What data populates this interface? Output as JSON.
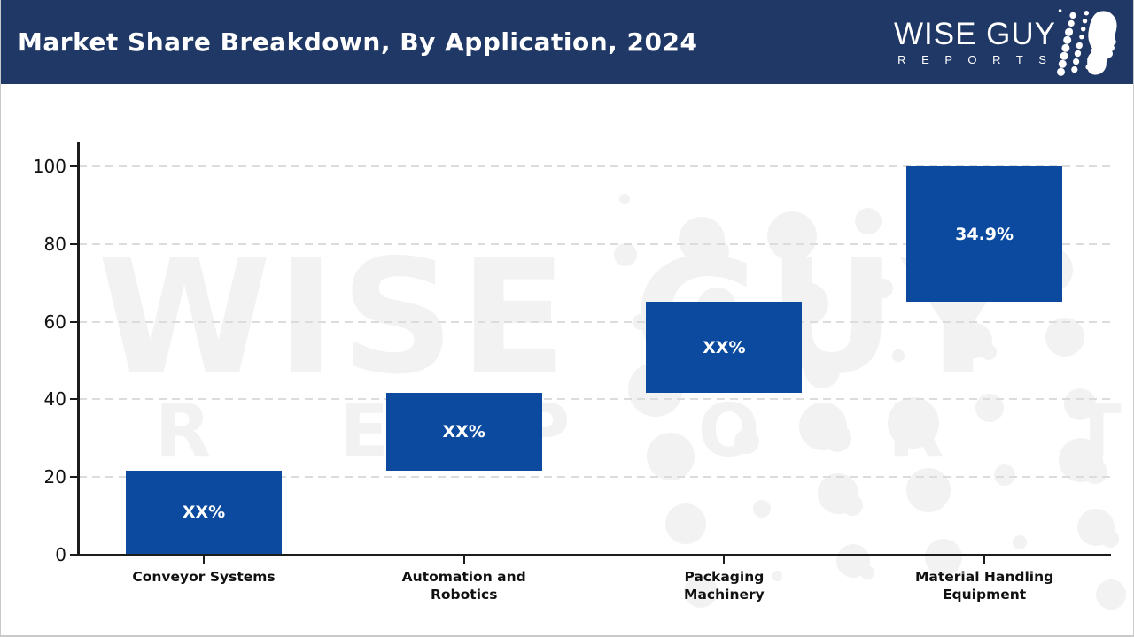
{
  "header": {
    "title": "Market Share Breakdown, By Application, 2024",
    "brand_line1": "WISE GUY",
    "brand_line2": "R E P O R T S",
    "bg_color": "#1f3865"
  },
  "watermark": {
    "line1": "WISE GUY",
    "line2": "R E P O R T S"
  },
  "chart_data": {
    "type": "bar",
    "subtype": "waterfall",
    "title": "Market Share Breakdown, By Application, 2024",
    "categories": [
      [
        "Conveyor Systems"
      ],
      [
        "Automation and",
        "Robotics"
      ],
      [
        "Packaging",
        "Machinery"
      ],
      [
        "Material Handling",
        "Equipment"
      ]
    ],
    "series": [
      {
        "name": "Market Share",
        "starts": [
          0,
          21.7,
          41.6,
          65.1
        ],
        "ends": [
          21.7,
          41.6,
          65.1,
          100
        ],
        "heights": [
          21.7,
          19.9,
          23.5,
          34.9
        ],
        "labels": [
          "XX%",
          "XX%",
          "XX%",
          "34.9%"
        ]
      }
    ],
    "yticks": [
      0,
      20,
      40,
      60,
      80,
      100
    ],
    "ylim": [
      0,
      106
    ],
    "xlabel": "",
    "ylabel": "",
    "grid": "horizontal-dashed",
    "legend": "none",
    "bar_color": "#0b4a9e",
    "bar_label_color": "#ffffff",
    "axis_color": "#1c1c1c",
    "gridline_color": "#dcdcdc"
  }
}
